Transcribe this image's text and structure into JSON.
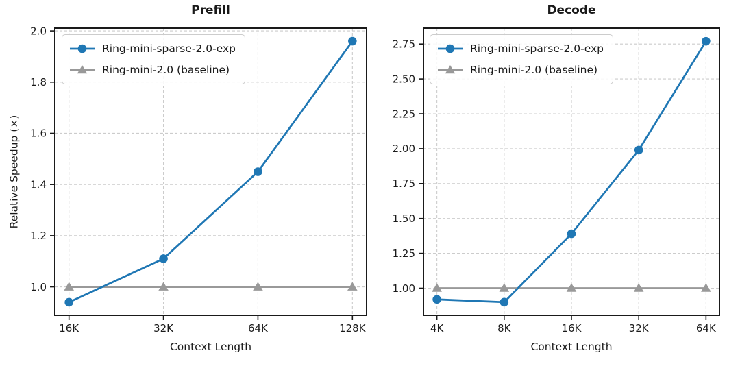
{
  "figure": {
    "background": "#ffffff",
    "grid_color": "#cccccc",
    "axes_color": "#1a1a1a"
  },
  "chart_data": [
    {
      "type": "line",
      "title": "Prefill",
      "xlabel": "Context Length",
      "ylabel": "Relative Speedup (×)",
      "categories": [
        "16K",
        "32K",
        "64K",
        "128K"
      ],
      "series": [
        {
          "name": "Ring-mini-sparse-2.0-exp",
          "marker": "circle",
          "color": "#1f77b4",
          "values": [
            0.94,
            1.11,
            1.45,
            1.96
          ]
        },
        {
          "name": "Ring-mini-2.0 (baseline)",
          "marker": "triangle",
          "color": "#999999",
          "values": [
            1.0,
            1.0,
            1.0,
            1.0
          ]
        }
      ],
      "yticks": [
        1.0,
        1.2,
        1.4,
        1.6,
        1.8,
        2.0
      ],
      "ytick_labels": [
        "1.0",
        "1.2",
        "1.4",
        "1.6",
        "1.8",
        "2.0"
      ],
      "ylim": [
        0.889,
        2.011
      ],
      "grid": true,
      "legend_position": "upper-left"
    },
    {
      "type": "line",
      "title": "Decode",
      "xlabel": "Context Length",
      "ylabel": "",
      "categories": [
        "4K",
        "8K",
        "16K",
        "32K",
        "64K"
      ],
      "series": [
        {
          "name": "Ring-mini-sparse-2.0-exp",
          "marker": "circle",
          "color": "#1f77b4",
          "values": [
            0.92,
            0.9,
            1.39,
            1.99,
            2.77
          ]
        },
        {
          "name": "Ring-mini-2.0 (baseline)",
          "marker": "triangle",
          "color": "#999999",
          "values": [
            1.0,
            1.0,
            1.0,
            1.0,
            1.0
          ]
        }
      ],
      "yticks": [
        1.0,
        1.25,
        1.5,
        1.75,
        2.0,
        2.25,
        2.5,
        2.75
      ],
      "ytick_labels": [
        "1.00",
        "1.25",
        "1.50",
        "1.75",
        "2.00",
        "2.25",
        "2.50",
        "2.75"
      ],
      "ylim": [
        0.806,
        2.864
      ],
      "grid": true,
      "legend_position": "upper-left"
    }
  ]
}
